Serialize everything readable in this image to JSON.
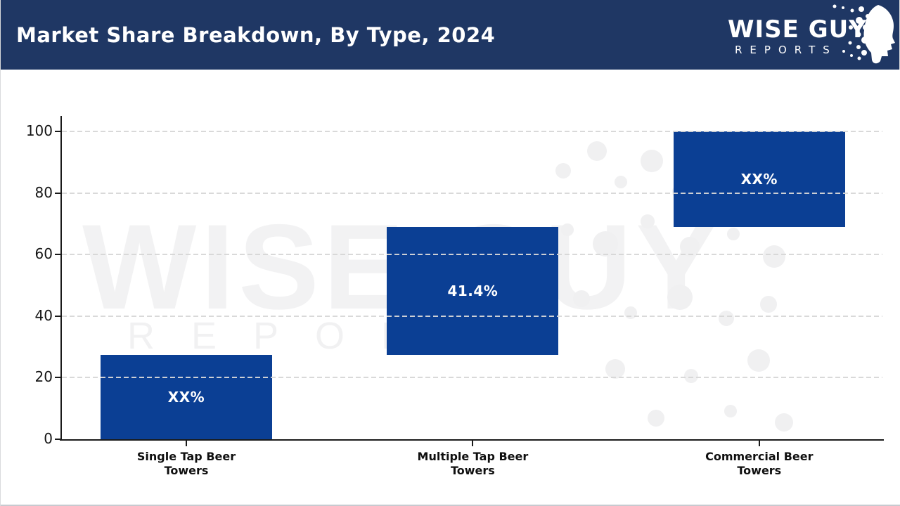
{
  "header": {
    "title": "Market Share Breakdown, By Type, 2024",
    "logo": {
      "line1": "WISE GUY",
      "line2": "REPORTS"
    }
  },
  "watermark": {
    "line1": "WISE GUY",
    "line2": "REPORTS"
  },
  "chart_data": {
    "type": "bar",
    "subtype": "waterfall-floating-bars",
    "title": "Market Share Breakdown, By Type, 2024",
    "categories": [
      "Single Tap Beer Towers",
      "Multiple Tap Beer Towers",
      "Commercial Beer Towers"
    ],
    "category_lines": [
      [
        "Single Tap Beer",
        "Towers"
      ],
      [
        "Multiple Tap Beer",
        "Towers"
      ],
      [
        "Commercial Beer",
        "Towers"
      ]
    ],
    "bars": [
      {
        "label": "XX%",
        "start": 0,
        "end": 27.5
      },
      {
        "label": "41.4%",
        "start": 27.5,
        "end": 68.9
      },
      {
        "label": "XX%",
        "start": 68.9,
        "end": 100
      }
    ],
    "yticks": [
      0,
      20,
      40,
      60,
      80,
      100
    ],
    "ylim": [
      0,
      105
    ],
    "xlabel": "",
    "ylabel": "",
    "legend": "none",
    "grid": "horizontal-dashed",
    "bar_color": "#0b3f94",
    "bar_label_color": "#ffffff"
  },
  "colors": {
    "header_bg": "#1f3764",
    "bar": "#0b3f94",
    "grid": "#d7d7d7",
    "axis": "#1a1a1a",
    "watermark": "#f2f2f3",
    "bottom_line": "#c7cad0"
  }
}
